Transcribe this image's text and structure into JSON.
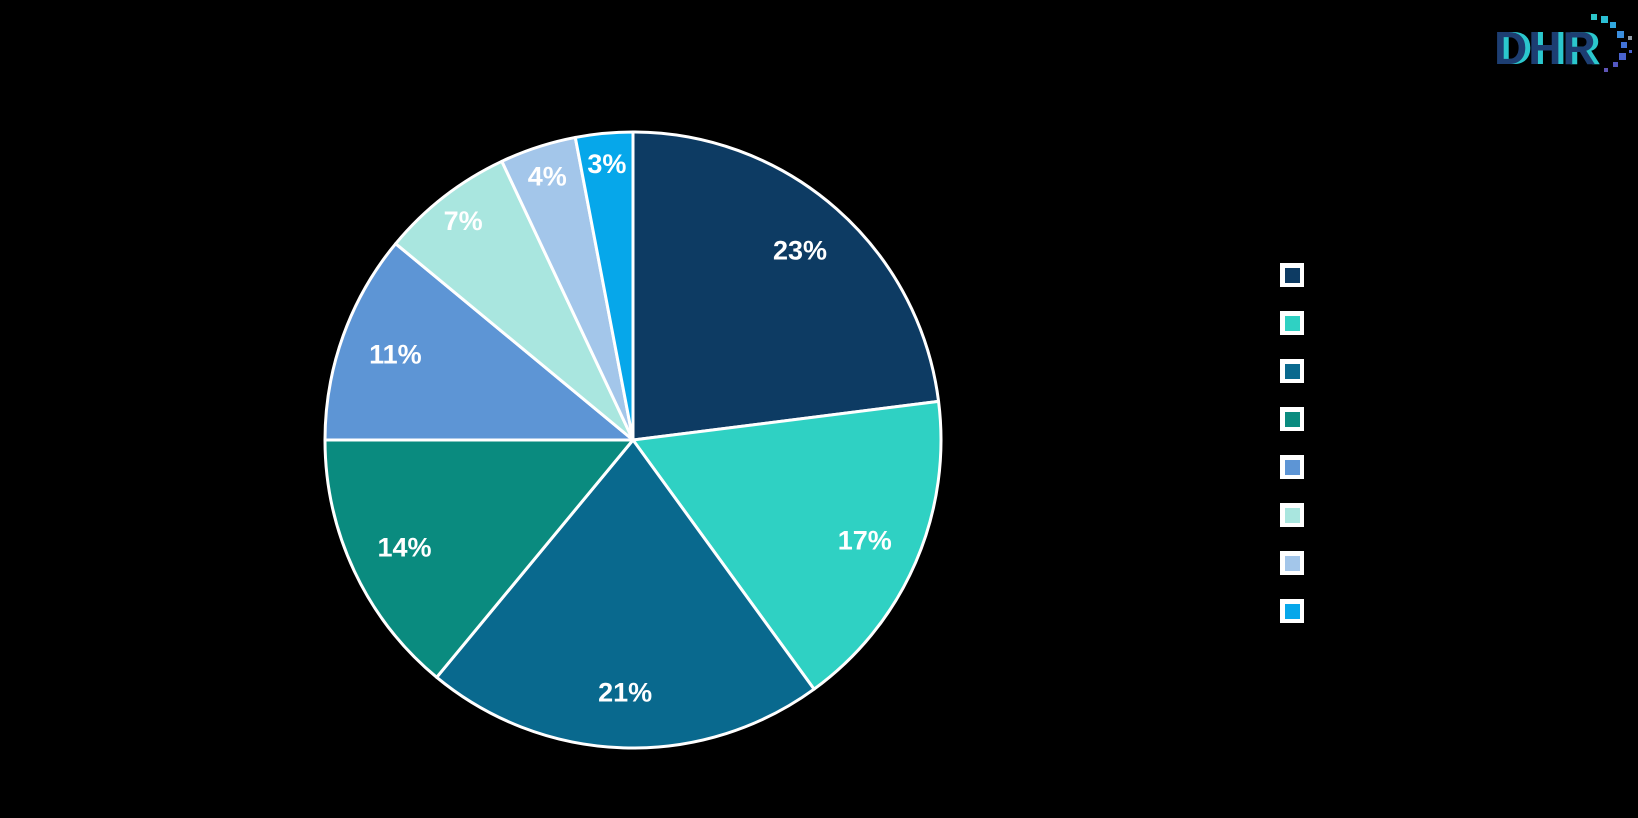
{
  "logo": {
    "text": "DHR"
  },
  "chart_data": {
    "type": "pie",
    "values": [
      23,
      17,
      21,
      14,
      11,
      7,
      4,
      3
    ],
    "data_labels": [
      "23%",
      "17%",
      "21%",
      "14%",
      "11%",
      "7%",
      "4%",
      "3%"
    ],
    "colors": [
      "#0d3b63",
      "#2fd1c3",
      "#09698e",
      "#0a8b7f",
      "#5d95d5",
      "#a9e6df",
      "#a3c6ea",
      "#06a7ea"
    ],
    "start_angle_deg": 0,
    "direction": "clockwise",
    "slice_border_color": "#ffffff",
    "data_label_color": "#ffffff",
    "background": "#000000",
    "legend": {
      "position": "right",
      "swatch_background": "#ffffff",
      "swatch_colors": [
        "#0d3b63",
        "#2fd1c3",
        "#09698e",
        "#0a8b7f",
        "#5d95d5",
        "#a9e6df",
        "#a3c6ea",
        "#06a7ea"
      ],
      "labels_visible": false
    }
  }
}
